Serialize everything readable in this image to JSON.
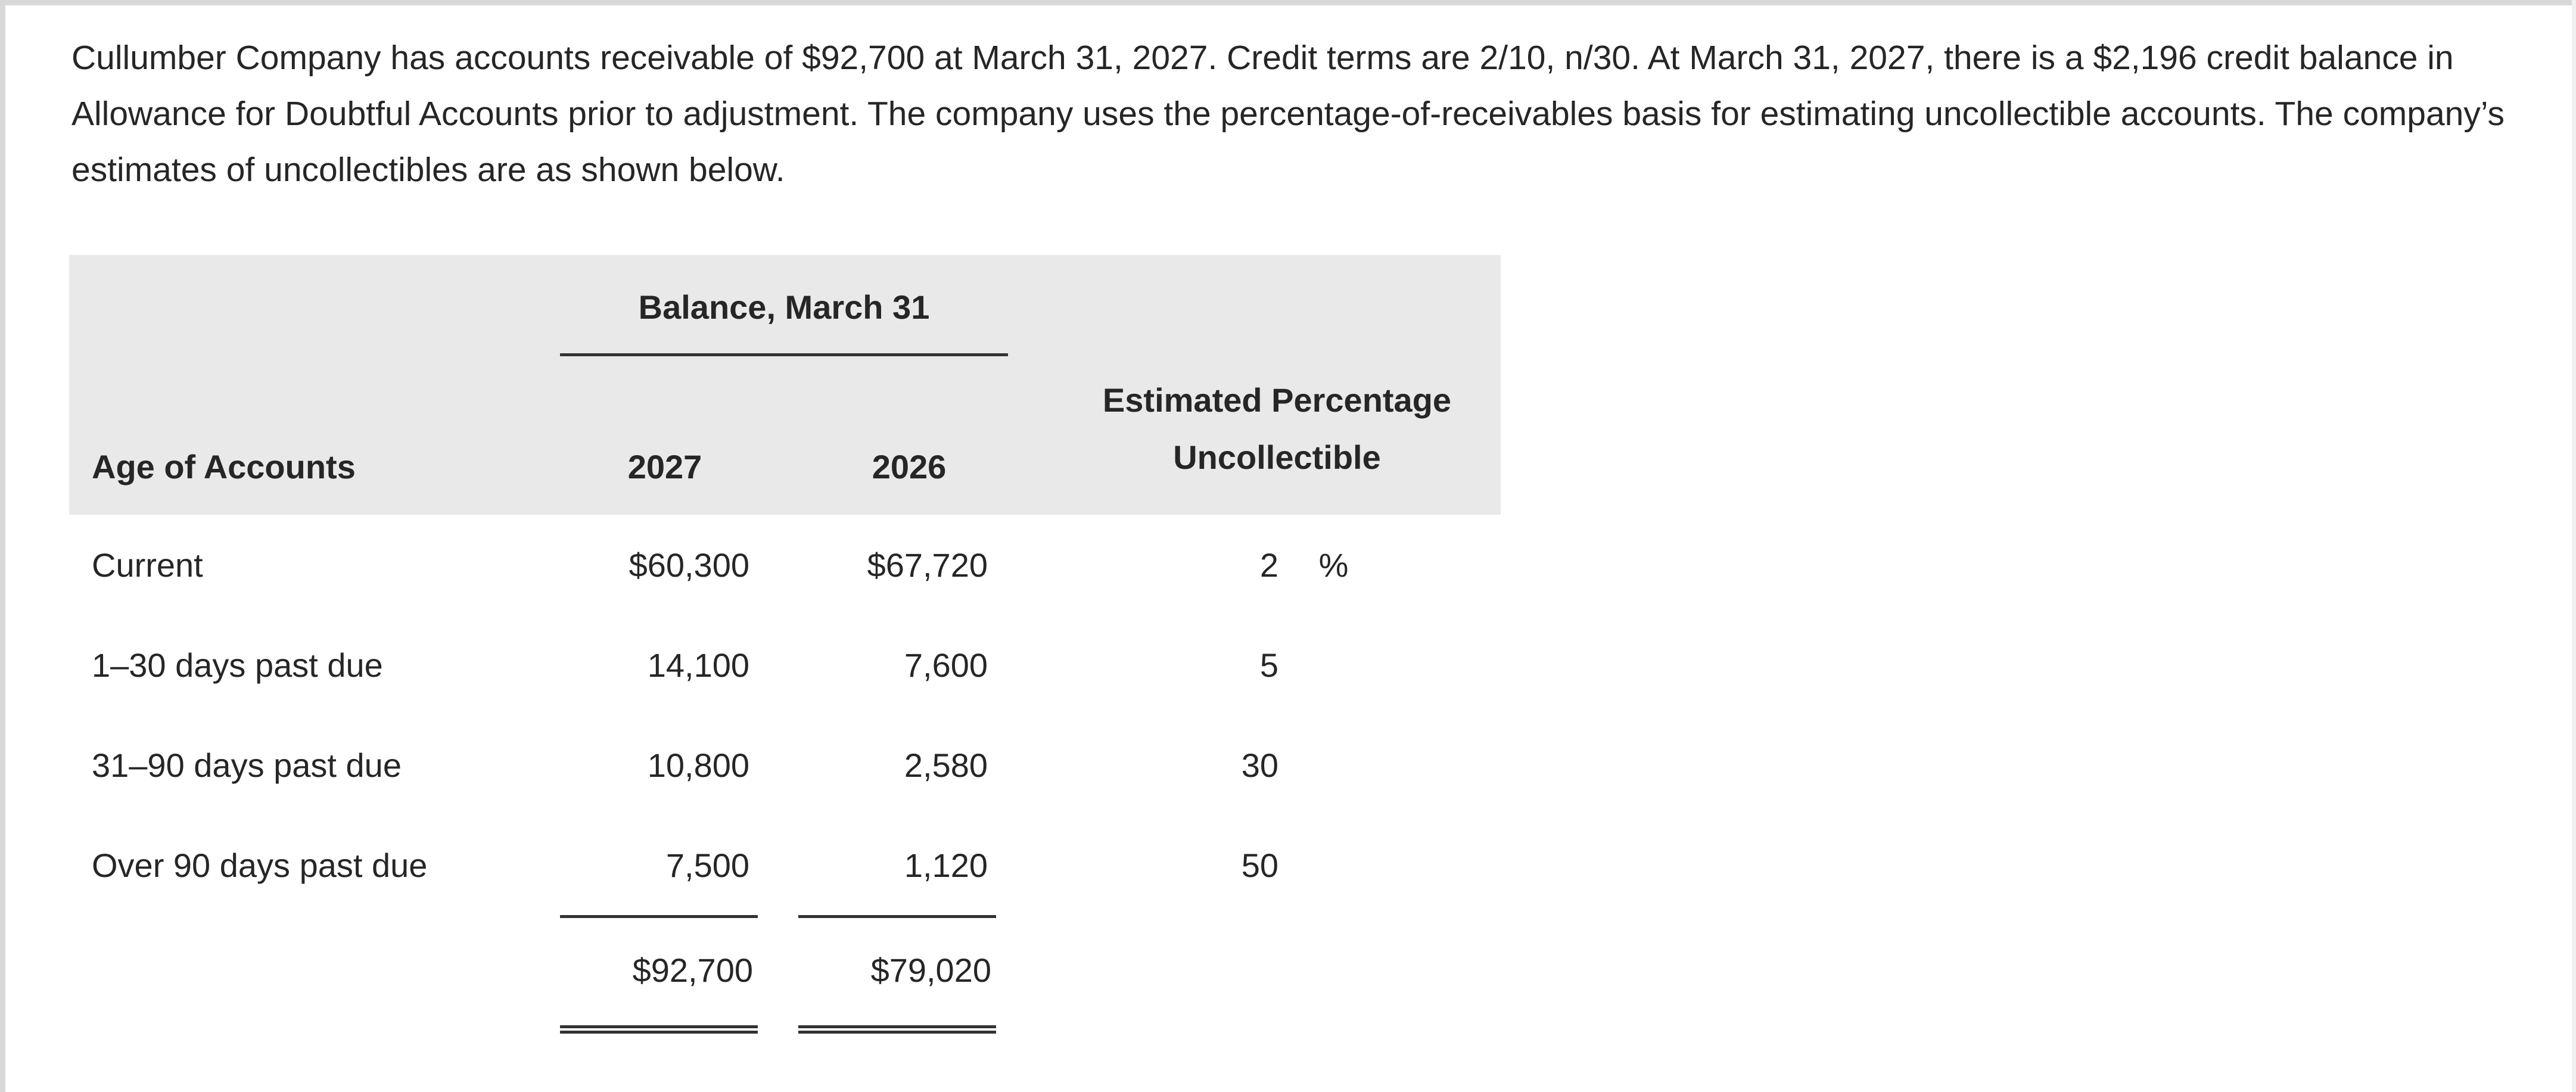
{
  "page": {
    "paragraph": "Cullumber Company has accounts receivable of $92,700 at March 31, 2027. Credit terms are 2/10, n/30. At March 31, 2027, there is a $2,196 credit balance in Allowance for Doubtful Accounts prior to adjustment. The company uses the percentage-of-receivables basis for estimating uncollectible accounts. The company’s estimates of uncollectibles are as shown below."
  },
  "table": {
    "group_header": "Balance, March 31",
    "columns": {
      "age": "Age of Accounts",
      "y2027": "2027",
      "y2026": "2026",
      "pct_line1": "Estimated Percentage",
      "pct_line2": "Uncollectible"
    },
    "rows": [
      {
        "age": "Current",
        "y2027": "$60,300",
        "y2026": "$67,720",
        "pct": "2",
        "pct_suffix": "%"
      },
      {
        "age": "1–30 days past due",
        "y2027": "14,100",
        "y2026": "7,600",
        "pct": "5",
        "pct_suffix": ""
      },
      {
        "age": "31–90 days past due",
        "y2027": "10,800",
        "y2026": "2,580",
        "pct": "30",
        "pct_suffix": ""
      },
      {
        "age": "Over 90 days past due",
        "y2027": "7,500",
        "y2026": "1,120",
        "pct": "50",
        "pct_suffix": ""
      }
    ],
    "totals": {
      "y2027": "$92,700",
      "y2026": "$79,020"
    }
  },
  "colors": {
    "header_bg": "#e9e9e9",
    "text": "#262626",
    "edge": "#d8d8d8"
  }
}
